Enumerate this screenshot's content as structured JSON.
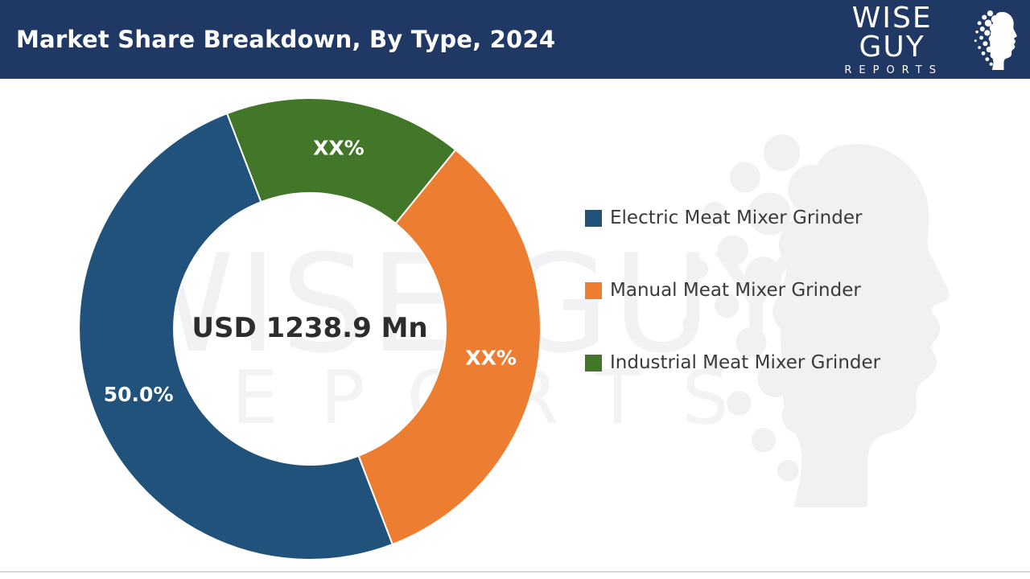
{
  "header": {
    "title": "Market Share Breakdown, By Type, 2024",
    "bg_color": "#1F3864",
    "logo": {
      "line1": "WISE GUY",
      "line2": "REPORTS"
    }
  },
  "watermark": {
    "line1": "WISE GUY",
    "line2": "REPORTS"
  },
  "chart_data": {
    "type": "pie",
    "subtype": "donut",
    "title": "Market Share Breakdown, By Type, 2024",
    "center_label": "USD 1238.9 Mn",
    "legend_position": "right",
    "start_angle_deg": 111,
    "direction": "counterclockwise",
    "donut_hole_ratio": 0.59,
    "slices": [
      {
        "label": "Electric Meat Mixer Grinder",
        "value_pct": 50.0,
        "display_label": "50.0%",
        "color": "#20527B"
      },
      {
        "label": "Manual Meat Mixer Grinder",
        "value_pct": 33.3,
        "display_label": "XX%",
        "color": "#ED7D31"
      },
      {
        "label": "Industrial Meat Mixer Grinder",
        "value_pct": 16.7,
        "display_label": "XX%",
        "color": "#427629"
      }
    ]
  },
  "colors": {
    "header_bg": "#1F3864",
    "watermark": "#f2f2f4",
    "center_text": "#2d2d2d",
    "legend_text": "#3a3a3a",
    "divider": "#d7d7d7"
  }
}
